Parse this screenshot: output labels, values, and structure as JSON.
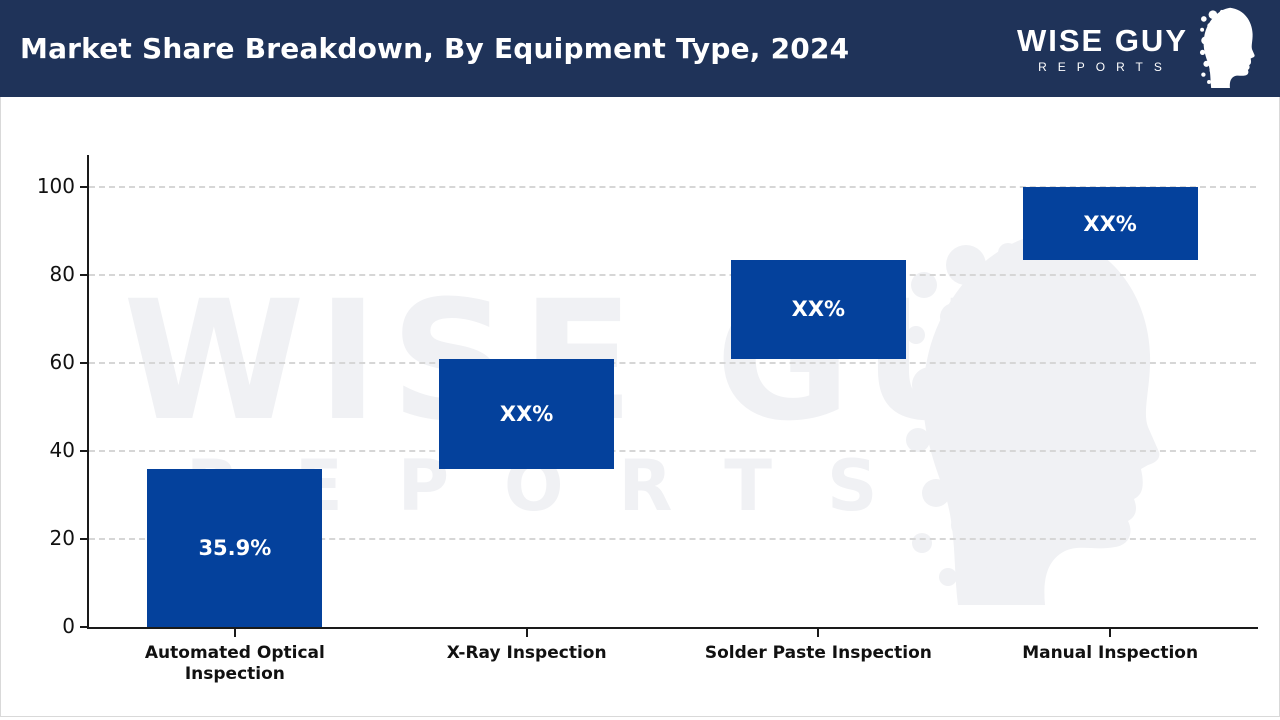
{
  "header": {
    "title": "Market Share Breakdown, By Equipment Type, 2024",
    "bg_color": "#1f3359",
    "logo": {
      "line1": "WISE GUY",
      "line2": "REPORTS"
    }
  },
  "watermark": {
    "line1": "WISE GUY",
    "line2": "REPORTS"
  },
  "chart_data": {
    "type": "bar",
    "subtype": "waterfall-floating-segments",
    "title": "Market Share Breakdown, By Equipment Type, 2024",
    "categories": [
      "Automated Optical Inspection",
      "X-Ray Inspection",
      "Solder Paste Inspection",
      "Manual Inspection"
    ],
    "segments": [
      {
        "category": "Automated Optical Inspection",
        "start": 0,
        "end": 35.9,
        "label": "35.9%"
      },
      {
        "category": "X-Ray Inspection",
        "start": 35.9,
        "end": 61.0,
        "label": "XX%"
      },
      {
        "category": "Solder Paste Inspection",
        "start": 61.0,
        "end": 83.4,
        "label": "XX%"
      },
      {
        "category": "Manual Inspection",
        "start": 83.4,
        "end": 100.0,
        "label": "XX%"
      }
    ],
    "yticks": [
      0,
      20,
      40,
      60,
      80,
      100
    ],
    "ylim": [
      0,
      106
    ],
    "xlabel": "",
    "ylabel": "",
    "grid": "horizontal-dashed",
    "legend": "none",
    "bar_color": "#04419c",
    "bar_label_color": "#ffffff",
    "gridline_color": "#d6d6d6",
    "axis_color": "#1a1a1a"
  }
}
